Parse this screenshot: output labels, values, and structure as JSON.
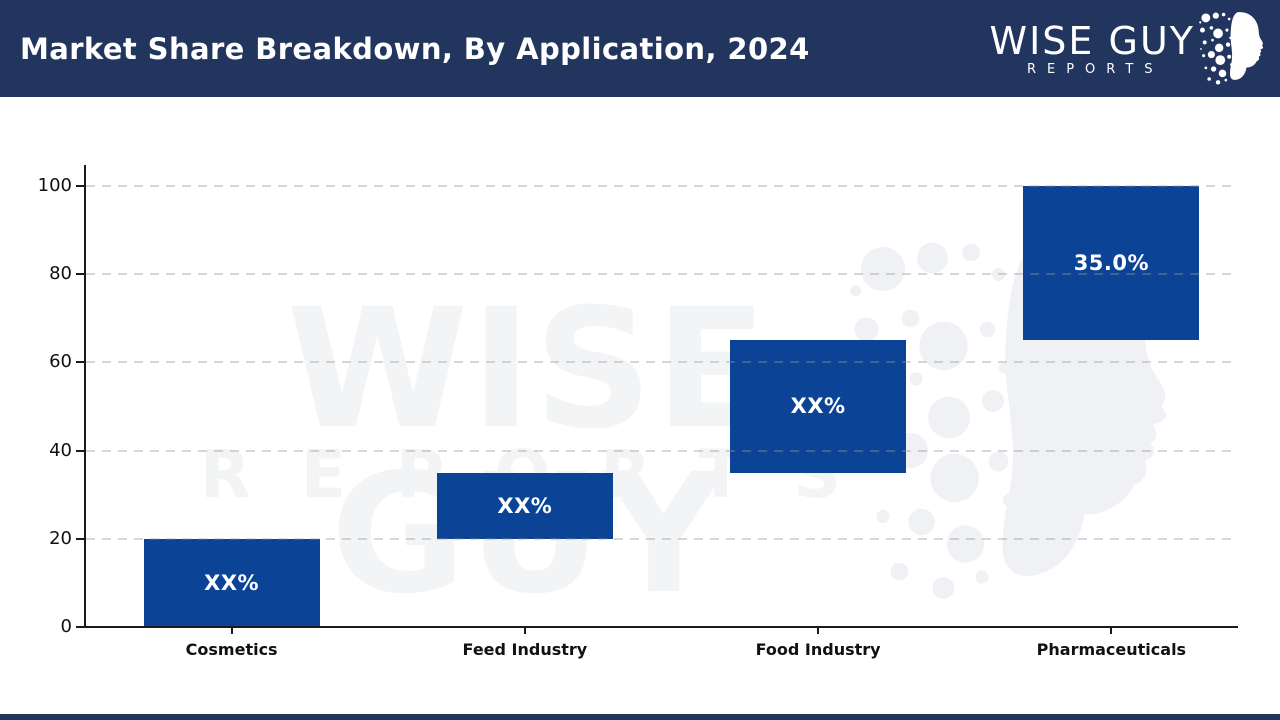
{
  "header": {
    "title": "Market Share Breakdown, By Application, 2024",
    "logo": {
      "line1": "WISE GUY",
      "line2": "REPORTS"
    }
  },
  "watermark": {
    "line1": "WISE GUY",
    "line2": "REPORTS"
  },
  "chart_data": {
    "type": "bar",
    "subtype": "waterfall",
    "title": "Market Share Breakdown, By Application, 2024",
    "xlabel": "",
    "ylabel": "",
    "ylim": [
      0,
      105
    ],
    "yticks": [
      0,
      20,
      40,
      60,
      80,
      100
    ],
    "grid": "horizontal dashed, drawn over bars",
    "legend": "none",
    "categories": [
      "Cosmetics",
      "Feed Industry",
      "Food Industry",
      "Pharmaceuticals"
    ],
    "segments": [
      {
        "category": "Cosmetics",
        "start": 0,
        "end": 20,
        "value": 20,
        "label": "XX%"
      },
      {
        "category": "Feed Industry",
        "start": 20,
        "end": 35,
        "value": 15,
        "label": "XX%"
      },
      {
        "category": "Food Industry",
        "start": 35,
        "end": 65,
        "value": 30,
        "label": "XX%"
      },
      {
        "category": "Pharmaceuticals",
        "start": 65,
        "end": 100,
        "value": 35,
        "label": "35.0%"
      }
    ]
  },
  "colors": {
    "header_navy": "#22355f",
    "bar_blue": "#0b4397",
    "bar_label": "#ffffff",
    "axis": "#1a1a1a",
    "gridline_gray": "#dedede",
    "watermark_gray": "#f3f4f6"
  }
}
